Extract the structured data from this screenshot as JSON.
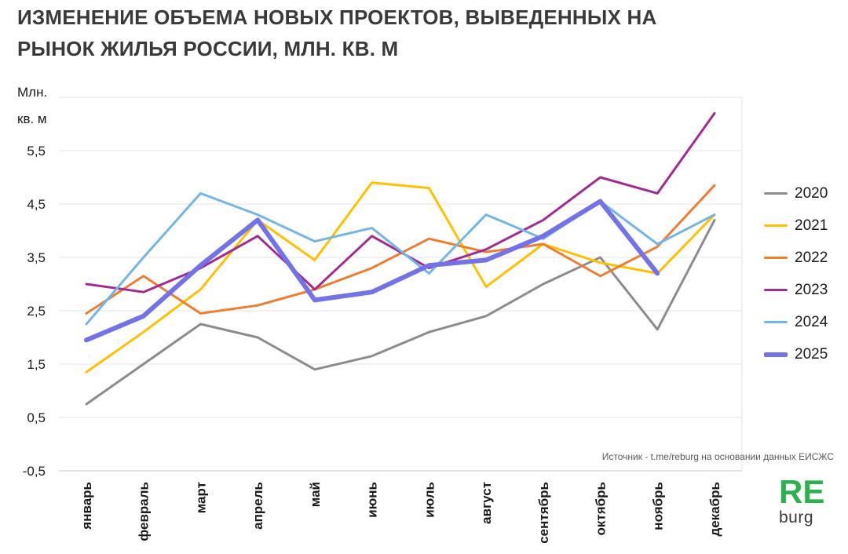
{
  "title": {
    "line1": "ИЗМЕНЕНИЕ ОБЪЕМА НОВЫХ ПРОЕКТОВ, ВЫВЕДЕННЫХ НА",
    "line2": "РЫНОК ЖИЛЬЯ РОССИИ, МЛН. КВ. М"
  },
  "y_unit": {
    "line1": "Млн.",
    "line2": "кв. м"
  },
  "source": "Источник - t.me/reburg на основании данных ЕИСЖС",
  "logo": {
    "top": "RE",
    "bottom": "burg",
    "color": "#2BB24C"
  },
  "chart_data": {
    "type": "line",
    "title": "Изменение объема новых проектов, выведенных на рынок жилья России, млн. кв. м",
    "xlabel": "",
    "ylabel": "Млн. кв. м",
    "ylim": [
      -0.5,
      6.5
    ],
    "grid": true,
    "legend_position": "right",
    "categories": [
      "январь",
      "февраль",
      "март",
      "апрель",
      "май",
      "июнь",
      "июль",
      "август",
      "сентябрь",
      "октябрь",
      "ноябрь",
      "декабрь"
    ],
    "yticks": [
      {
        "value": -0.5,
        "label": "-0,5"
      },
      {
        "value": 0.5,
        "label": "0,5"
      },
      {
        "value": 1.5,
        "label": "1,5"
      },
      {
        "value": 2.5,
        "label": "2,5"
      },
      {
        "value": 3.5,
        "label": "3,5"
      },
      {
        "value": 4.5,
        "label": "4,5"
      },
      {
        "value": 5.5,
        "label": "5,5"
      }
    ],
    "gridline_values": [
      -0.5,
      0.5,
      1.5,
      2.5,
      3.5,
      4.5,
      5.5,
      6.5
    ],
    "series": [
      {
        "name": "2020",
        "color": "#8C8C8C",
        "width": 3,
        "values": [
          0.75,
          1.5,
          2.25,
          2.0,
          1.4,
          1.65,
          2.1,
          2.4,
          3.0,
          3.5,
          2.15,
          4.2
        ]
      },
      {
        "name": "2021",
        "color": "#FFC000",
        "width": 3,
        "values": [
          1.35,
          2.1,
          2.9,
          4.2,
          3.45,
          4.9,
          4.8,
          2.95,
          3.75,
          3.4,
          3.2,
          4.3
        ]
      },
      {
        "name": "2022",
        "color": "#ED7D31",
        "width": 3,
        "values": [
          2.45,
          3.15,
          2.45,
          2.6,
          2.9,
          3.3,
          3.85,
          3.6,
          3.75,
          3.15,
          3.7,
          4.85
        ]
      },
      {
        "name": "2023",
        "color": "#A02B93",
        "width": 3,
        "values": [
          3.0,
          2.85,
          3.3,
          3.9,
          2.9,
          3.9,
          3.3,
          3.65,
          4.2,
          5.0,
          4.7,
          6.2
        ]
      },
      {
        "name": "2024",
        "color": "#74B5E8",
        "width": 3,
        "values": [
          2.25,
          3.5,
          4.7,
          4.3,
          3.8,
          4.05,
          3.2,
          4.3,
          3.85,
          4.55,
          3.75,
          4.3
        ]
      },
      {
        "name": "2025",
        "color": "#7372E8",
        "width": 6,
        "values": [
          1.95,
          2.4,
          3.35,
          4.2,
          2.7,
          2.85,
          3.35,
          3.45,
          3.9,
          4.55,
          3.2,
          null
        ]
      }
    ]
  }
}
